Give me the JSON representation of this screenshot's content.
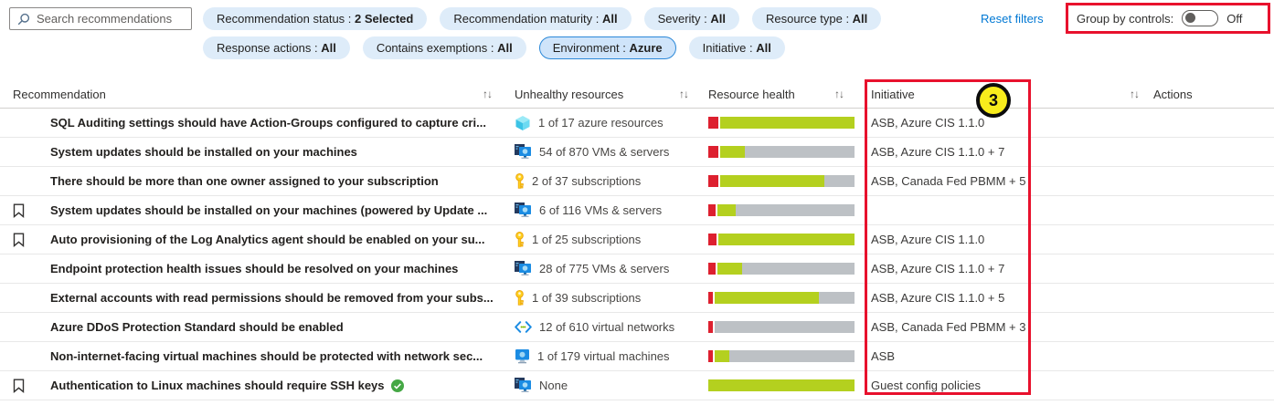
{
  "filters": {
    "search_placeholder": "Search recommendations",
    "pills_row1": [
      {
        "label": "Recommendation status",
        "value": "2 Selected",
        "selected": false
      },
      {
        "label": "Recommendation maturity",
        "value": "All",
        "selected": false
      },
      {
        "label": "Severity",
        "value": "All",
        "selected": false
      },
      {
        "label": "Resource type",
        "value": "All",
        "selected": false
      }
    ],
    "pills_row2": [
      {
        "label": "Response actions",
        "value": "All",
        "selected": false
      },
      {
        "label": "Contains exemptions",
        "value": "All",
        "selected": false
      },
      {
        "label": "Environment",
        "value": "Azure",
        "selected": true
      },
      {
        "label": "Initiative",
        "value": "All",
        "selected": false
      }
    ],
    "reset_label": "Reset filters",
    "group_by_label": "Group by controls:",
    "group_by_state": "Off"
  },
  "table": {
    "columns": [
      {
        "label": "Recommendation",
        "sortable": true
      },
      {
        "label": "Unhealthy resources",
        "sortable": true
      },
      {
        "label": "Resource health",
        "sortable": true
      },
      {
        "label": "Initiative",
        "sortable": true
      },
      {
        "label": "Actions",
        "sortable": false
      }
    ],
    "rows": [
      {
        "bookmarked": false,
        "recommendation": "SQL Auditing settings should have Action-Groups configured to capture cri...",
        "resource_icon": "azure-resource-icon",
        "unhealthy": "1 of 17 azure resources",
        "health": {
          "red": 7,
          "green": 93,
          "gray": 0
        },
        "initiative": "ASB, Azure CIS 1.1.0"
      },
      {
        "bookmarked": false,
        "recommendation": "System updates should be installed on your machines",
        "resource_icon": "vm-servers-icon",
        "unhealthy": "54 of 870 VMs & servers",
        "health": {
          "red": 7,
          "green": 17,
          "gray": 76
        },
        "initiative": "ASB, Azure CIS 1.1.0 + 7"
      },
      {
        "bookmarked": false,
        "recommendation": "There should be more than one owner assigned to your subscription",
        "resource_icon": "key-icon",
        "unhealthy": "2 of 37 subscriptions",
        "health": {
          "red": 7,
          "green": 72,
          "gray": 21
        },
        "initiative": "ASB, Canada Fed PBMM + 5"
      },
      {
        "bookmarked": true,
        "recommendation": "System updates should be installed on your machines (powered by Update ...",
        "resource_icon": "vm-servers-icon",
        "unhealthy": "6 of 116 VMs & servers",
        "health": {
          "red": 5,
          "green": 13,
          "gray": 82
        },
        "initiative": ""
      },
      {
        "bookmarked": true,
        "recommendation": "Auto provisioning of the Log Analytics agent should be enabled on your su...",
        "resource_icon": "key-icon",
        "unhealthy": "1 of 25 subscriptions",
        "health": {
          "red": 6,
          "green": 94,
          "gray": 0
        },
        "initiative": "ASB, Azure CIS 1.1.0"
      },
      {
        "bookmarked": false,
        "recommendation": "Endpoint protection health issues should be resolved on your machines",
        "resource_icon": "vm-servers-icon",
        "unhealthy": "28 of 775 VMs & servers",
        "health": {
          "red": 5,
          "green": 17,
          "gray": 78
        },
        "initiative": "ASB, Azure CIS 1.1.0 + 7"
      },
      {
        "bookmarked": false,
        "recommendation": "External accounts with read permissions should be removed from your subs...",
        "resource_icon": "key-icon",
        "unhealthy": "1 of 39 subscriptions",
        "health": {
          "red": 3,
          "green": 72,
          "gray": 25
        },
        "initiative": "ASB, Azure CIS 1.1.0 + 5"
      },
      {
        "bookmarked": false,
        "recommendation": "Azure DDoS Protection Standard should be enabled",
        "resource_icon": "virtual-network-icon",
        "unhealthy": "12 of 610 virtual networks",
        "health": {
          "red": 3,
          "green": 0,
          "gray": 97
        },
        "initiative": "ASB, Canada Fed PBMM + 3"
      },
      {
        "bookmarked": false,
        "recommendation": "Non-internet-facing virtual machines should be protected with network sec...",
        "resource_icon": "virtual-machine-icon",
        "unhealthy": "1 of 179 virtual machines",
        "health": {
          "red": 3,
          "green": 10,
          "gray": 87
        },
        "initiative": "ASB"
      },
      {
        "bookmarked": true,
        "recommendation": "Authentication to Linux machines should require SSH keys",
        "status_icon": "check-circle-icon",
        "resource_icon": "vm-servers-icon",
        "unhealthy": "None",
        "health": {
          "red": 0,
          "green": 100,
          "gray": 0
        },
        "initiative": "Guest config policies"
      }
    ]
  },
  "annotations": {
    "initiative_step_badge": "3",
    "highlight_color": "#e8112d"
  },
  "colors": {
    "health_red": "#dd202f",
    "health_green": "#b4d01f",
    "health_gray": "#bdc1c5",
    "link_blue": "#0078d4",
    "pill_bg": "#deecf9",
    "pill_selected_bg": "#cfe4fa",
    "pill_selected_border": "#2b88d8"
  }
}
